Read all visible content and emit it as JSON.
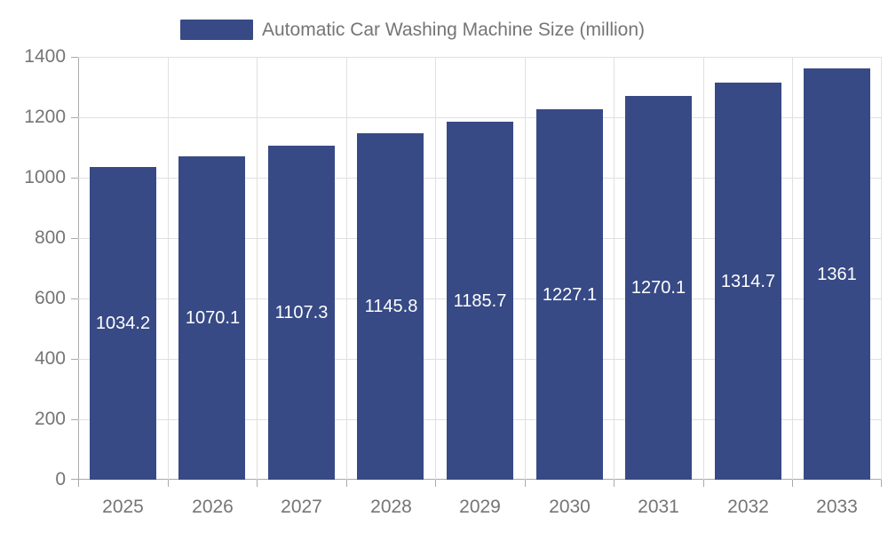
{
  "legend": {
    "label": "Automatic Car Washing Machine Size (million)"
  },
  "chart_data": {
    "type": "bar",
    "title": "",
    "xlabel": "",
    "ylabel": "",
    "categories": [
      "2025",
      "2026",
      "2027",
      "2028",
      "2029",
      "2030",
      "2031",
      "2032",
      "2033"
    ],
    "series": [
      {
        "name": "Automatic Car Washing Machine Size (million)",
        "values": [
          1034.2,
          1070.1,
          1107.3,
          1145.8,
          1185.7,
          1227.1,
          1270.1,
          1314.7,
          1361
        ]
      }
    ],
    "value_labels": [
      "1034.2",
      "1070.1",
      "1107.3",
      "1145.8",
      "1185.7",
      "1227.1",
      "1270.1",
      "1314.7",
      "1361"
    ],
    "ylim": [
      0,
      1400
    ],
    "yticks": [
      0,
      200,
      400,
      600,
      800,
      1000,
      1200,
      1400
    ],
    "grid": true,
    "legend_position": "top",
    "colors": {
      "bar": "#374A85",
      "bar_label": "#FFFFFF",
      "axis_label": "#757575",
      "legend_text": "#757575",
      "grid_line": "#E0E0E0",
      "axis_line": "#AAAAAA",
      "background": "#FFFFFF"
    }
  }
}
